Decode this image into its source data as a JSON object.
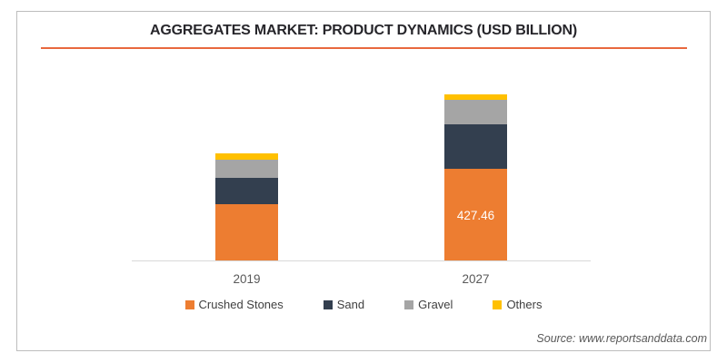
{
  "title": "AGGREGATES MARKET: PRODUCT DYNAMICS (USD BILLION)",
  "source": "Source: www.reportsanddata.com",
  "chart_data": {
    "type": "bar",
    "stacked": true,
    "orientation": "vertical",
    "title": "AGGREGATES MARKET: PRODUCT DYNAMICS (USD BILLION)",
    "units": "USD Billion",
    "categories": [
      "2019",
      "2027"
    ],
    "series": [
      {
        "name": "Crushed Stones",
        "color": "#ED7D31",
        "values": [
          264,
          427.46
        ]
      },
      {
        "name": "Sand",
        "color": "#333F4F",
        "values": [
          121.5,
          205
        ]
      },
      {
        "name": "Gravel",
        "color": "#A5A5A5",
        "values": [
          84,
          113
        ]
      },
      {
        "name": "Others",
        "color": "#FFC000",
        "values": [
          29,
          27
        ]
      }
    ],
    "data_labels": [
      {
        "category_index": 1,
        "series_index": 0,
        "text": "427.46"
      }
    ],
    "legend": {
      "position": "bottom",
      "marker": "square",
      "entries": [
        "Crushed Stones",
        "Sand",
        "Gravel",
        "Others"
      ]
    },
    "grid": false,
    "y_axis": {
      "visible": false
    },
    "x_axis": {
      "visible": true
    }
  },
  "colors": {
    "title_text": "#27262B",
    "divider": "#E8683E",
    "axis_line": "#D9D9D9",
    "category_label": "#595959",
    "legend_text": "#404040",
    "frame_border": "#BDBDBD",
    "data_label_text": "#FFFFFF",
    "background": "#FFFFFF"
  }
}
